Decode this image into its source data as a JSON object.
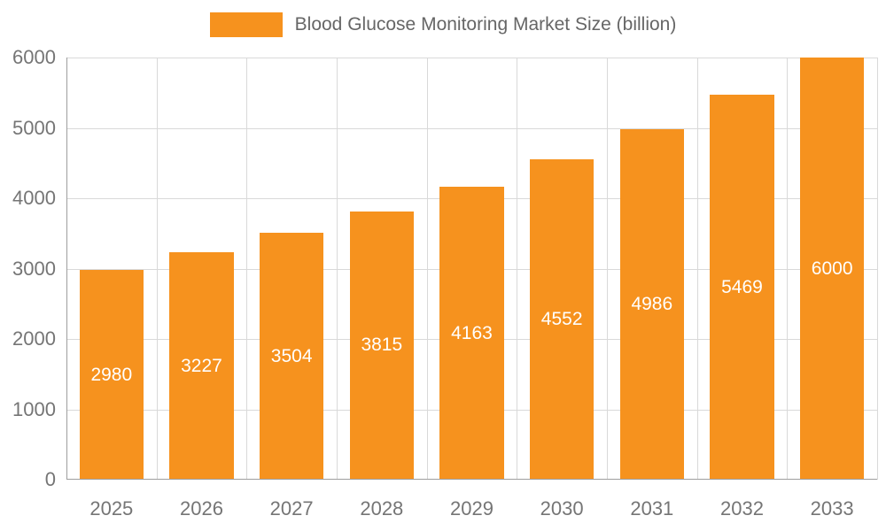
{
  "chart_data": {
    "type": "bar",
    "title": "Blood Glucose Monitoring Market Size (billion)",
    "categories": [
      "2025",
      "2026",
      "2027",
      "2028",
      "2029",
      "2030",
      "2031",
      "2032",
      "2033"
    ],
    "values": [
      2980,
      3227,
      3504,
      3815,
      4163,
      4552,
      4986,
      5469,
      6000
    ],
    "xlabel": "",
    "ylabel": "",
    "ylim": [
      0,
      6000
    ],
    "yticks": [
      0,
      1000,
      2000,
      3000,
      4000,
      5000,
      6000
    ],
    "grid": true,
    "legend_position": "top-center",
    "bar_color": "#F6921E",
    "bar_label_color": "#ffffff",
    "axis_text_color": "#757575",
    "grid_color": "#d9d9d9",
    "axis_line_color": "#9e9e9e",
    "background_color": "#ffffff"
  }
}
